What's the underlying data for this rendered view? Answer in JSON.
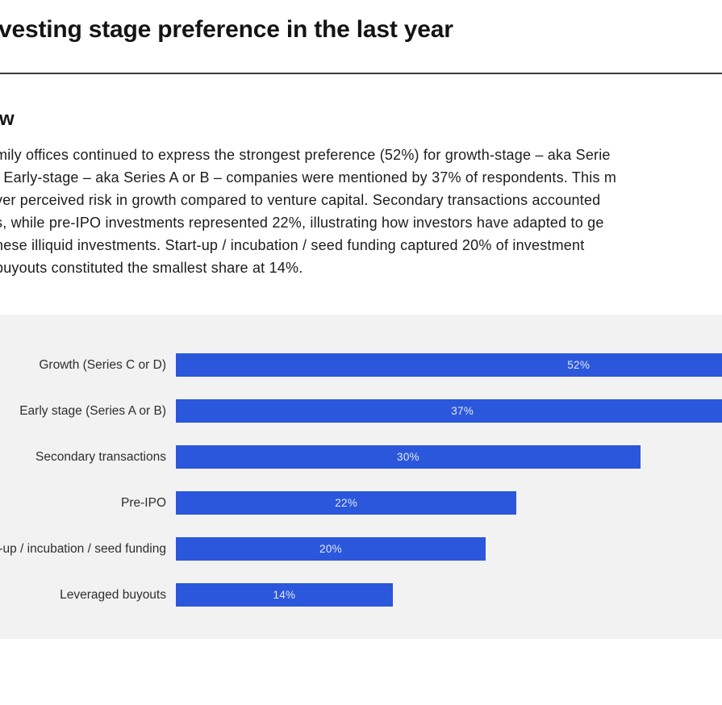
{
  "page": {
    "title_fragment": "vesting stage preference in the last year",
    "section_heading_fragment": "w",
    "body_lines": [
      "mily offices continued to express the strongest preference (52%) for growth-stage – aka Serie",
      ". Early-stage – aka Series A or B – companies were mentioned by 37% of respondents. This m",
      "ver perceived risk in growth compared to venture capital. Secondary transactions accounted",
      "s, while pre-IPO investments represented 22%, illustrating how investors have adapted to ge",
      "hese illiquid investments. Start-up / incubation / seed funding captured 20% of investment",
      "buyouts constituted the smallest share at 14%."
    ]
  },
  "chart_data": {
    "type": "bar",
    "orientation": "horizontal",
    "title": "",
    "xlabel": "",
    "ylabel": "",
    "grid": false,
    "legend": false,
    "xlim": [
      0,
      52
    ],
    "categories": [
      "Growth (Series C or D)",
      "Early stage (Series A or B)",
      "Secondary transactions",
      "Pre-IPO",
      "Start-up / incubation / seed funding",
      "Leveraged buyouts"
    ],
    "values": [
      52,
      37,
      30,
      22,
      20,
      14
    ],
    "value_labels": [
      "52%",
      "37%",
      "30%",
      "22%",
      "20%",
      "14%"
    ],
    "value_suffix": "%",
    "bar_color": "#2b57dd",
    "panel_background": "#f2f2f3",
    "value_label_color": "#e3e7f0",
    "category_label_color": "#2e2e2e"
  },
  "colors": {
    "background": "#ffffff",
    "text": "#1c1c1c",
    "rule": "#3c3c3c"
  }
}
